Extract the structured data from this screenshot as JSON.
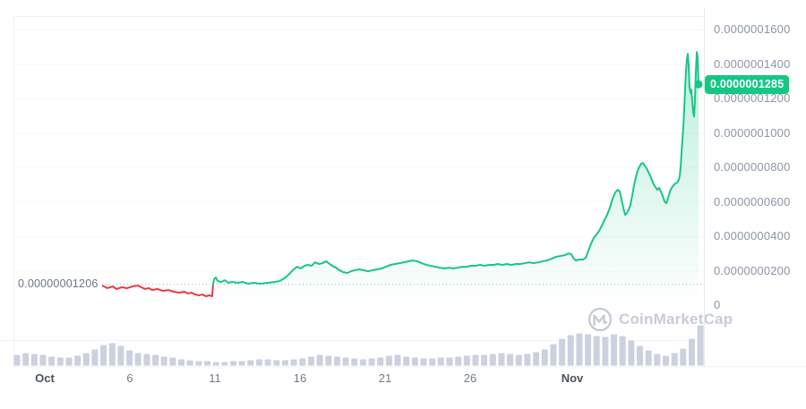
{
  "chart_data": {
    "type": "line",
    "title": "",
    "subtitle": "",
    "x_unit": "days since Oct 1",
    "price_unit": "USD x 1e-8",
    "ylim": [
      0,
      16.6
    ],
    "grid": "faint-horizontal",
    "legend": "none",
    "watermark": "CoinMarketCap",
    "current_price": {
      "label": "0.0000001285",
      "value": 12.85
    },
    "baseline": {
      "label": "0.00000001206",
      "value": 1.206
    },
    "colors": {
      "up": "#16c784",
      "down": "#ea3943",
      "badge_bg": "#16c784",
      "badge_text": "#ffffff",
      "volume_bar": "#ccd1e0",
      "axis_text": "#8c95a6",
      "baseline_text": "#6b7586",
      "baseline_dots": "#a8aebc",
      "gridline": "#f7f8fa",
      "pane_border": "#eef0f4",
      "watermark": "#c7ccd7"
    },
    "y_axis": {
      "ticks": [
        {
          "label": "0.0000001600",
          "value": 16
        },
        {
          "label": "0.0000001400",
          "value": 14
        },
        {
          "label": "0.0000001200",
          "value": 12
        },
        {
          "label": "0.0000001000",
          "value": 10
        },
        {
          "label": "0.0000000800",
          "value": 8
        },
        {
          "label": "0.0000000600",
          "value": 6
        },
        {
          "label": "0.0000000400",
          "value": 4
        },
        {
          "label": "0.0000000200",
          "value": 2
        },
        {
          "label": "0",
          "value": 0
        }
      ]
    },
    "x_axis": {
      "ticks": [
        {
          "label": "Oct",
          "day": 0,
          "bold": true
        },
        {
          "label": "6",
          "day": 5,
          "bold": false
        },
        {
          "label": "11",
          "day": 10,
          "bold": false
        },
        {
          "label": "16",
          "day": 15,
          "bold": false
        },
        {
          "label": "21",
          "day": 20,
          "bold": false
        },
        {
          "label": "26",
          "day": 25,
          "bold": false
        },
        {
          "label": "Nov",
          "day": 31,
          "bold": true
        }
      ]
    },
    "series": [
      {
        "name": "price-down",
        "color": "#ea3943",
        "points": [
          [
            3.26,
            1.19
          ],
          [
            3.47,
            1.09
          ],
          [
            3.68,
            0.99
          ],
          [
            4.0,
            1.09
          ],
          [
            4.21,
            0.94
          ],
          [
            4.53,
            1.04
          ],
          [
            4.84,
            0.99
          ],
          [
            5.16,
            1.09
          ],
          [
            5.47,
            1.14
          ],
          [
            5.68,
            1.04
          ],
          [
            5.89,
            0.94
          ],
          [
            6.11,
            0.99
          ],
          [
            6.32,
            0.88
          ],
          [
            6.63,
            0.94
          ],
          [
            6.95,
            0.83
          ],
          [
            7.26,
            0.88
          ],
          [
            7.58,
            0.78
          ],
          [
            7.89,
            0.73
          ],
          [
            8.21,
            0.78
          ],
          [
            8.42,
            0.68
          ],
          [
            8.63,
            0.73
          ],
          [
            8.84,
            0.62
          ],
          [
            9.05,
            0.57
          ],
          [
            9.26,
            0.62
          ],
          [
            9.47,
            0.52
          ],
          [
            9.68,
            0.57
          ],
          [
            9.84,
            0.52
          ],
          [
            9.89,
            1.19
          ]
        ]
      },
      {
        "name": "price-up",
        "color": "#16c784",
        "points": [
          [
            9.89,
            1.19
          ],
          [
            9.95,
            1.51
          ],
          [
            10.05,
            1.61
          ],
          [
            10.16,
            1.4
          ],
          [
            10.37,
            1.35
          ],
          [
            10.58,
            1.45
          ],
          [
            10.79,
            1.3
          ],
          [
            11.0,
            1.35
          ],
          [
            11.32,
            1.3
          ],
          [
            11.63,
            1.35
          ],
          [
            11.95,
            1.25
          ],
          [
            12.26,
            1.3
          ],
          [
            12.68,
            1.25
          ],
          [
            13.11,
            1.3
          ],
          [
            13.53,
            1.35
          ],
          [
            13.79,
            1.4
          ],
          [
            14.0,
            1.51
          ],
          [
            14.21,
            1.66
          ],
          [
            14.42,
            1.87
          ],
          [
            14.63,
            2.08
          ],
          [
            14.84,
            2.23
          ],
          [
            15.05,
            2.13
          ],
          [
            15.26,
            2.29
          ],
          [
            15.47,
            2.34
          ],
          [
            15.68,
            2.29
          ],
          [
            15.89,
            2.49
          ],
          [
            16.11,
            2.39
          ],
          [
            16.32,
            2.44
          ],
          [
            16.53,
            2.55
          ],
          [
            16.68,
            2.44
          ],
          [
            16.89,
            2.29
          ],
          [
            17.11,
            2.18
          ],
          [
            17.32,
            2.03
          ],
          [
            17.53,
            1.92
          ],
          [
            17.79,
            1.87
          ],
          [
            18.0,
            1.97
          ],
          [
            18.21,
            2.03
          ],
          [
            18.47,
            2.08
          ],
          [
            18.74,
            2.03
          ],
          [
            19.0,
            1.97
          ],
          [
            19.26,
            2.03
          ],
          [
            19.53,
            2.08
          ],
          [
            19.79,
            2.13
          ],
          [
            20.05,
            2.23
          ],
          [
            20.32,
            2.34
          ],
          [
            20.58,
            2.39
          ],
          [
            20.84,
            2.44
          ],
          [
            21.11,
            2.49
          ],
          [
            21.37,
            2.55
          ],
          [
            21.63,
            2.6
          ],
          [
            21.89,
            2.55
          ],
          [
            22.16,
            2.44
          ],
          [
            22.42,
            2.34
          ],
          [
            22.68,
            2.29
          ],
          [
            22.95,
            2.23
          ],
          [
            23.21,
            2.18
          ],
          [
            23.47,
            2.13
          ],
          [
            23.74,
            2.18
          ],
          [
            24.0,
            2.13
          ],
          [
            24.26,
            2.18
          ],
          [
            24.53,
            2.23
          ],
          [
            24.79,
            2.23
          ],
          [
            25.05,
            2.29
          ],
          [
            25.32,
            2.29
          ],
          [
            25.58,
            2.34
          ],
          [
            25.84,
            2.29
          ],
          [
            26.11,
            2.34
          ],
          [
            26.37,
            2.34
          ],
          [
            26.63,
            2.39
          ],
          [
            26.89,
            2.34
          ],
          [
            27.16,
            2.39
          ],
          [
            27.42,
            2.34
          ],
          [
            27.68,
            2.39
          ],
          [
            27.95,
            2.39
          ],
          [
            28.21,
            2.44
          ],
          [
            28.47,
            2.49
          ],
          [
            28.74,
            2.44
          ],
          [
            29.0,
            2.49
          ],
          [
            29.26,
            2.55
          ],
          [
            29.53,
            2.6
          ],
          [
            29.79,
            2.7
          ],
          [
            30.05,
            2.81
          ],
          [
            30.32,
            2.86
          ],
          [
            30.58,
            2.91
          ],
          [
            30.79,
            3.01
          ],
          [
            30.95,
            2.96
          ],
          [
            31.05,
            2.75
          ],
          [
            31.21,
            2.6
          ],
          [
            31.42,
            2.65
          ],
          [
            31.63,
            2.65
          ],
          [
            31.79,
            2.75
          ],
          [
            31.95,
            3.17
          ],
          [
            32.11,
            3.58
          ],
          [
            32.26,
            3.9
          ],
          [
            32.42,
            4.1
          ],
          [
            32.58,
            4.31
          ],
          [
            32.74,
            4.62
          ],
          [
            32.89,
            4.94
          ],
          [
            33.05,
            5.25
          ],
          [
            33.21,
            5.66
          ],
          [
            33.37,
            6.18
          ],
          [
            33.53,
            6.55
          ],
          [
            33.68,
            6.7
          ],
          [
            33.79,
            6.6
          ],
          [
            33.89,
            6.18
          ],
          [
            34.0,
            5.66
          ],
          [
            34.11,
            5.25
          ],
          [
            34.21,
            5.35
          ],
          [
            34.32,
            5.56
          ],
          [
            34.42,
            5.82
          ],
          [
            34.53,
            6.39
          ],
          [
            34.63,
            6.96
          ],
          [
            34.74,
            7.43
          ],
          [
            34.84,
            7.79
          ],
          [
            34.95,
            8.05
          ],
          [
            35.05,
            8.21
          ],
          [
            35.16,
            8.26
          ],
          [
            35.26,
            8.1
          ],
          [
            35.37,
            7.95
          ],
          [
            35.47,
            7.74
          ],
          [
            35.58,
            7.53
          ],
          [
            35.68,
            7.27
          ],
          [
            35.79,
            7.01
          ],
          [
            35.89,
            6.86
          ],
          [
            36.0,
            6.7
          ],
          [
            36.11,
            6.81
          ],
          [
            36.21,
            6.6
          ],
          [
            36.32,
            6.34
          ],
          [
            36.42,
            6.03
          ],
          [
            36.53,
            5.92
          ],
          [
            36.63,
            6.23
          ],
          [
            36.74,
            6.6
          ],
          [
            36.84,
            6.81
          ],
          [
            36.95,
            6.96
          ],
          [
            37.05,
            7.06
          ],
          [
            37.16,
            7.12
          ],
          [
            37.26,
            7.27
          ],
          [
            37.32,
            7.53
          ],
          [
            37.37,
            8.05
          ],
          [
            37.42,
            8.78
          ],
          [
            37.47,
            9.56
          ],
          [
            37.53,
            10.39
          ],
          [
            37.58,
            11.38
          ],
          [
            37.63,
            12.47
          ],
          [
            37.68,
            13.56
          ],
          [
            37.74,
            14.29
          ],
          [
            37.79,
            14.6
          ],
          [
            37.84,
            13.97
          ],
          [
            37.89,
            12.68
          ],
          [
            37.95,
            12.31
          ],
          [
            38.0,
            12.52
          ],
          [
            38.05,
            11.84
          ],
          [
            38.11,
            11.17
          ],
          [
            38.16,
            10.96
          ],
          [
            38.21,
            11.9
          ],
          [
            38.26,
            13.45
          ],
          [
            38.32,
            14.7
          ],
          [
            38.37,
            14.39
          ],
          [
            38.42,
            12.83
          ]
        ]
      }
    ],
    "volume_bars_relative": [
      12,
      14,
      13,
      12,
      10,
      9,
      9,
      11,
      14,
      18,
      23,
      25,
      22,
      17,
      14,
      13,
      12,
      10,
      9,
      7,
      6,
      5,
      5,
      4,
      4,
      5,
      5,
      6,
      7,
      7,
      6,
      6,
      7,
      8,
      10,
      12,
      11,
      10,
      9,
      8,
      7,
      8,
      9,
      11,
      12,
      10,
      9,
      8,
      8,
      9,
      9,
      10,
      11,
      12,
      12,
      13,
      14,
      13,
      12,
      13,
      15,
      18,
      24,
      30,
      34,
      36,
      35,
      33,
      32,
      35,
      33,
      28,
      22,
      17,
      13,
      11,
      14,
      19,
      30,
      45
    ]
  }
}
